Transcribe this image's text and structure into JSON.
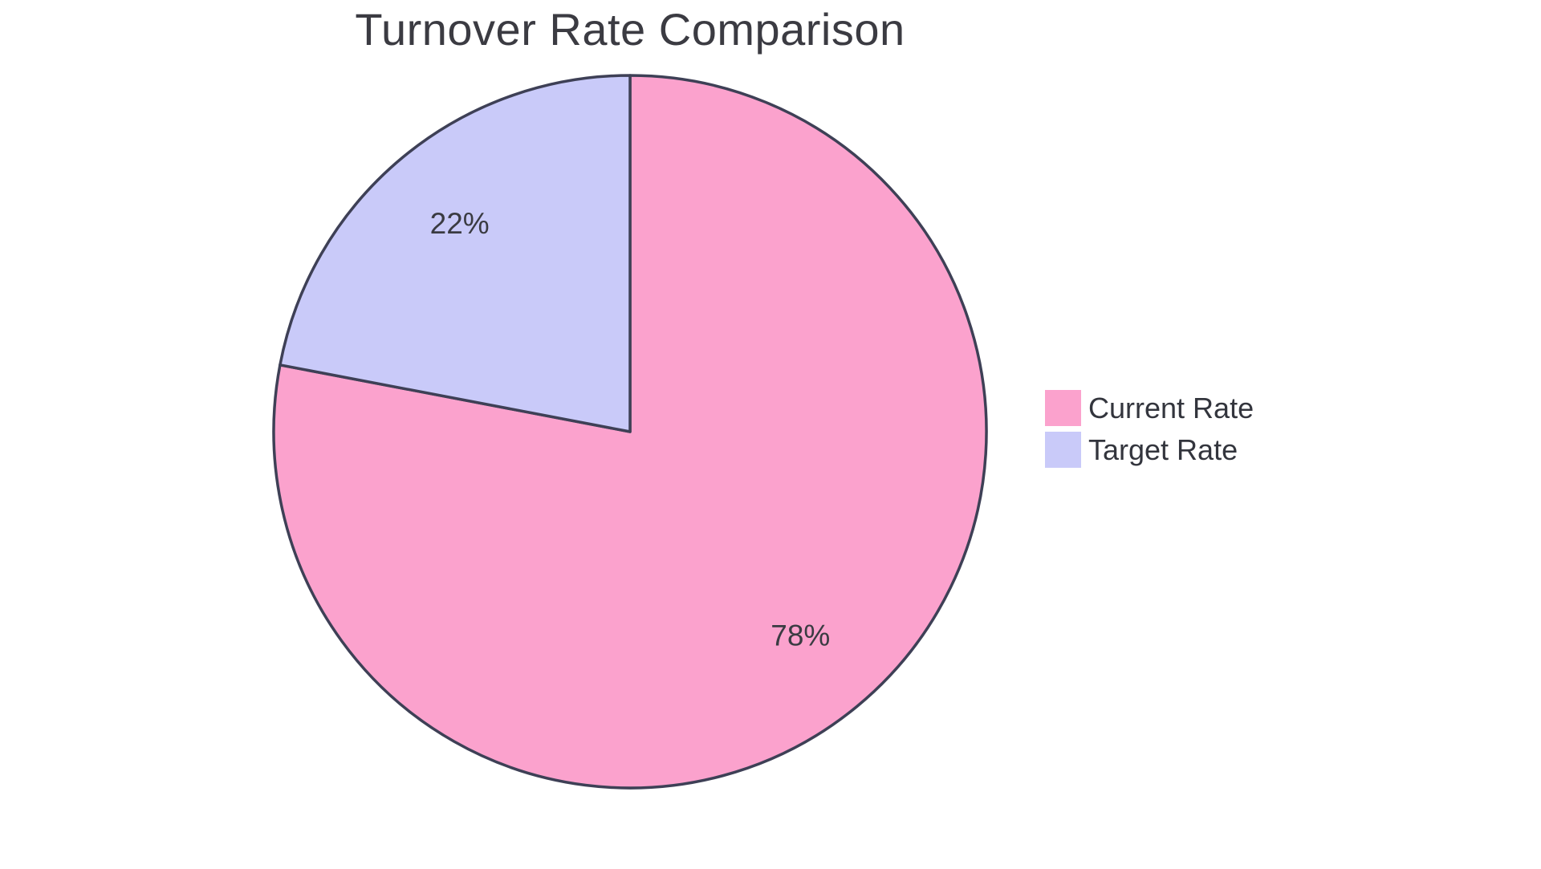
{
  "chart_data": {
    "type": "pie",
    "title": "Turnover Rate Comparison",
    "slices": [
      {
        "label": "Current Rate",
        "value": 78,
        "display": "78%",
        "color": "#fba2cd"
      },
      {
        "label": "Target Rate",
        "value": 22,
        "display": "22%",
        "color": "#c9caf9"
      }
    ],
    "start_angle_deg": 0,
    "direction": "clockwise",
    "legend_position": "right",
    "stroke_color": "#3e4056",
    "stroke_width": 3.5,
    "label_color": "#3a3b42",
    "title_color": "#3b3b42",
    "legend_text_color": "#33353d",
    "background_color": "#ffffff"
  }
}
